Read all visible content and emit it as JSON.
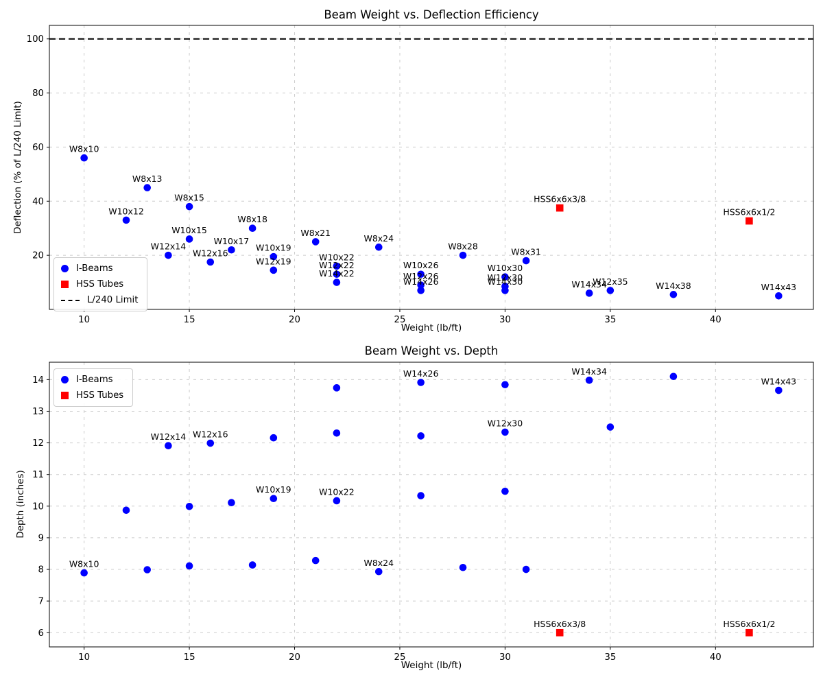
{
  "figure": {
    "background": "#ffffff",
    "ibeam_color": "#0000ff",
    "hss_color": "#ff0000",
    "limit_color": "#000000"
  },
  "chart_data": [
    {
      "type": "scatter",
      "title": "Beam Weight vs. Deflection Efficiency",
      "xlabel": "Weight (lb/ft)",
      "ylabel": "Deflection (% of L/240 Limit)",
      "xlim": [
        8.35,
        44.65
      ],
      "ylim": [
        0,
        105
      ],
      "xticks": [
        10,
        15,
        20,
        25,
        30,
        35,
        40
      ],
      "yticks": [
        20,
        40,
        60,
        80,
        100
      ],
      "grid": true,
      "legend_position": "lower-left",
      "ref_line": {
        "label": "L/240 Limit",
        "y": 100,
        "style": "dashed",
        "color": "#000000"
      },
      "series": [
        {
          "name": "I-Beams",
          "marker": "circle",
          "color": "#0000ff",
          "points": [
            {
              "label": "W8x10",
              "x": 10,
              "y": 56,
              "annotate": true
            },
            {
              "label": "W10x12",
              "x": 12,
              "y": 33,
              "annotate": true
            },
            {
              "label": "W8x13",
              "x": 13,
              "y": 45,
              "annotate": true
            },
            {
              "label": "W12x14",
              "x": 14,
              "y": 20,
              "annotate": true
            },
            {
              "label": "W8x15",
              "x": 15,
              "y": 38,
              "annotate": true
            },
            {
              "label": "W10x15",
              "x": 15,
              "y": 26,
              "annotate": true
            },
            {
              "label": "W12x16",
              "x": 16,
              "y": 17.5,
              "annotate": true
            },
            {
              "label": "W10x17",
              "x": 17,
              "y": 22,
              "annotate": true
            },
            {
              "label": "W8x18",
              "x": 18,
              "y": 30,
              "annotate": true
            },
            {
              "label": "W10x19",
              "x": 19,
              "y": 19.5,
              "annotate": true
            },
            {
              "label": "W12x19",
              "x": 19,
              "y": 14.5,
              "annotate": true
            },
            {
              "label": "W8x21",
              "x": 21,
              "y": 25,
              "annotate": true
            },
            {
              "label": "W10x22",
              "x": 22,
              "y": 16,
              "annotate": true
            },
            {
              "label": "W12x22",
              "x": 22,
              "y": 13,
              "annotate": true
            },
            {
              "label": "W14x22",
              "x": 22,
              "y": 10,
              "annotate": true
            },
            {
              "label": "W8x24",
              "x": 24,
              "y": 23,
              "annotate": true
            },
            {
              "label": "W10x26",
              "x": 26,
              "y": 13,
              "annotate": true
            },
            {
              "label": "W12x26",
              "x": 26,
              "y": 9,
              "annotate": true
            },
            {
              "label": "W14x26",
              "x": 26,
              "y": 7,
              "annotate": true
            },
            {
              "label": "W8x28",
              "x": 28,
              "y": 20,
              "annotate": true
            },
            {
              "label": "W10x30",
              "x": 30,
              "y": 12,
              "annotate": true
            },
            {
              "label": "W12x30",
              "x": 30,
              "y": 8.5,
              "annotate": true
            },
            {
              "label": "W14x30",
              "x": 30,
              "y": 7,
              "annotate": true
            },
            {
              "label": "W8x31",
              "x": 31,
              "y": 18,
              "annotate": true
            },
            {
              "label": "W14x34",
              "x": 34,
              "y": 6,
              "annotate": true
            },
            {
              "label": "W12x35",
              "x": 35,
              "y": 7,
              "annotate": true
            },
            {
              "label": "W14x38",
              "x": 38,
              "y": 5.5,
              "annotate": true
            },
            {
              "label": "W14x43",
              "x": 43,
              "y": 5,
              "annotate": true
            }
          ]
        },
        {
          "name": "HSS Tubes",
          "marker": "square",
          "color": "#ff0000",
          "points": [
            {
              "label": "HSS6x6x3/8",
              "x": 32.6,
              "y": 37.5,
              "annotate": true
            },
            {
              "label": "HSS6x6x1/2",
              "x": 41.6,
              "y": 32.7,
              "annotate": true
            }
          ]
        }
      ]
    },
    {
      "type": "scatter",
      "title": "Beam Weight vs. Depth",
      "xlabel": "Weight (lb/ft)",
      "ylabel": "Depth (inches)",
      "xlim": [
        8.35,
        44.65
      ],
      "ylim": [
        5.55,
        14.55
      ],
      "xticks": [
        10,
        15,
        20,
        25,
        30,
        35,
        40
      ],
      "yticks": [
        6,
        7,
        8,
        9,
        10,
        11,
        12,
        13,
        14
      ],
      "grid": true,
      "legend_position": "upper-left",
      "ref_line": null,
      "series": [
        {
          "name": "I-Beams",
          "marker": "circle",
          "color": "#0000ff",
          "points": [
            {
              "label": "W8x10",
              "x": 10,
              "y": 7.89,
              "annotate": true
            },
            {
              "label": "W10x12",
              "x": 12,
              "y": 9.87,
              "annotate": false
            },
            {
              "label": "W8x13",
              "x": 13,
              "y": 7.99,
              "annotate": false
            },
            {
              "label": "W12x14",
              "x": 14,
              "y": 11.91,
              "annotate": true
            },
            {
              "label": "W8x15",
              "x": 15,
              "y": 8.11,
              "annotate": false
            },
            {
              "label": "W10x15",
              "x": 15,
              "y": 9.99,
              "annotate": false
            },
            {
              "label": "W12x16",
              "x": 16,
              "y": 11.99,
              "annotate": true
            },
            {
              "label": "W10x17",
              "x": 17,
              "y": 10.11,
              "annotate": false
            },
            {
              "label": "W8x18",
              "x": 18,
              "y": 8.14,
              "annotate": false
            },
            {
              "label": "W10x19",
              "x": 19,
              "y": 10.24,
              "annotate": true
            },
            {
              "label": "W12x19",
              "x": 19,
              "y": 12.16,
              "annotate": false
            },
            {
              "label": "W8x21",
              "x": 21,
              "y": 8.28,
              "annotate": false
            },
            {
              "label": "W10x22",
              "x": 22,
              "y": 10.17,
              "annotate": true
            },
            {
              "label": "W12x22",
              "x": 22,
              "y": 12.31,
              "annotate": false
            },
            {
              "label": "W14x22",
              "x": 22,
              "y": 13.74,
              "annotate": false
            },
            {
              "label": "W8x24",
              "x": 24,
              "y": 7.93,
              "annotate": true
            },
            {
              "label": "W10x26",
              "x": 26,
              "y": 10.33,
              "annotate": false
            },
            {
              "label": "W12x26",
              "x": 26,
              "y": 12.22,
              "annotate": false
            },
            {
              "label": "W14x26",
              "x": 26,
              "y": 13.91,
              "annotate": true
            },
            {
              "label": "W8x28",
              "x": 28,
              "y": 8.06,
              "annotate": false
            },
            {
              "label": "W10x30",
              "x": 30,
              "y": 10.47,
              "annotate": false
            },
            {
              "label": "W12x30",
              "x": 30,
              "y": 12.34,
              "annotate": true
            },
            {
              "label": "W14x30",
              "x": 30,
              "y": 13.84,
              "annotate": false
            },
            {
              "label": "W8x31",
              "x": 31,
              "y": 8.0,
              "annotate": false
            },
            {
              "label": "W14x34",
              "x": 34,
              "y": 13.98,
              "annotate": true
            },
            {
              "label": "W12x35",
              "x": 35,
              "y": 12.5,
              "annotate": false
            },
            {
              "label": "W14x38",
              "x": 38,
              "y": 14.1,
              "annotate": false
            },
            {
              "label": "W14x43",
              "x": 43,
              "y": 13.66,
              "annotate": true
            }
          ]
        },
        {
          "name": "HSS Tubes",
          "marker": "square",
          "color": "#ff0000",
          "points": [
            {
              "label": "HSS6x6x3/8",
              "x": 32.6,
              "y": 6.0,
              "annotate": true
            },
            {
              "label": "HSS6x6x1/2",
              "x": 41.6,
              "y": 6.0,
              "annotate": true
            }
          ]
        }
      ]
    }
  ]
}
